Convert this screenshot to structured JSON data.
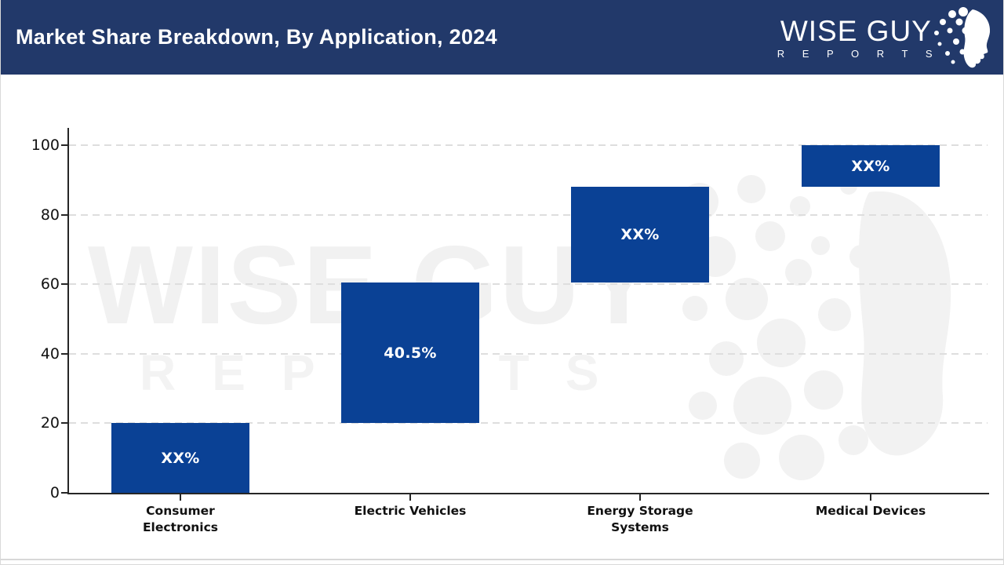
{
  "header": {
    "title": "Market Share Breakdown, By Application, 2024",
    "bg_color": "#22396a",
    "logo": {
      "line1": "WISE GUY",
      "line2": "R E P O R T S"
    }
  },
  "watermark": {
    "line1": "WISE GUY",
    "line2": "REPORTS"
  },
  "chart_data": {
    "type": "bar",
    "subtype": "waterfall-stacked-segments",
    "title": "Market Share Breakdown, By Application, 2024",
    "categories": [
      "Consumer\nElectronics",
      "Electric Vehicles",
      "Energy Storage\nSystems",
      "Medical Devices"
    ],
    "segments": [
      {
        "category": "Consumer Electronics",
        "start": 0,
        "end": 20,
        "value": 20,
        "label": "XX%"
      },
      {
        "category": "Electric Vehicles",
        "start": 20,
        "end": 60.5,
        "value": 40.5,
        "label": "40.5%"
      },
      {
        "category": "Energy Storage Systems",
        "start": 60.5,
        "end": 88,
        "value": 27.5,
        "label": "XX%"
      },
      {
        "category": "Medical Devices",
        "start": 88,
        "end": 100,
        "value": 12,
        "label": "XX%"
      }
    ],
    "ylim": [
      0,
      100
    ],
    "yticks": [
      0,
      20,
      40,
      60,
      80,
      100
    ],
    "xlabel": "",
    "ylabel": "",
    "bar_color": "#0a4195",
    "bar_label_color": "#ffffff",
    "grid": "horizontal-dashed",
    "gridline_color": "#dedede",
    "legend": "none"
  }
}
